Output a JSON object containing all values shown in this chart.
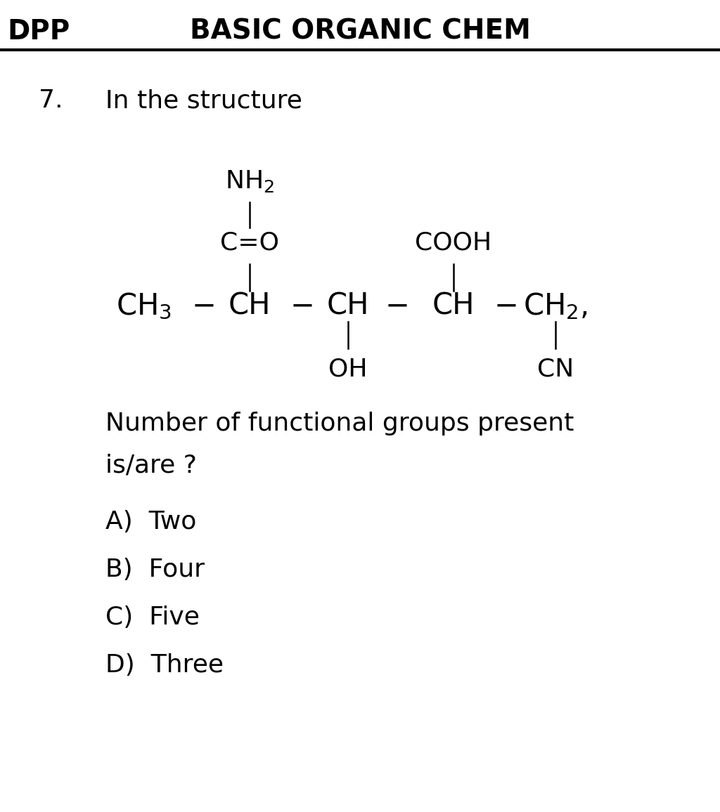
{
  "header_left": "DPP",
  "header_right": "BASIC ORGANIC CHEM",
  "question_number": "7.",
  "question_text": "In the structure",
  "question_text2": "Number of functional groups present",
  "question_text3": "is/are ?",
  "options": [
    "A)  Two",
    "B)  Four",
    "C)  Five",
    "D)  Three"
  ],
  "bg_color": "#ffffff",
  "text_color": "#000000",
  "header_fontsize": 28,
  "body_fontsize": 26,
  "options_fontsize": 26,
  "molecule_fontsize": 26
}
